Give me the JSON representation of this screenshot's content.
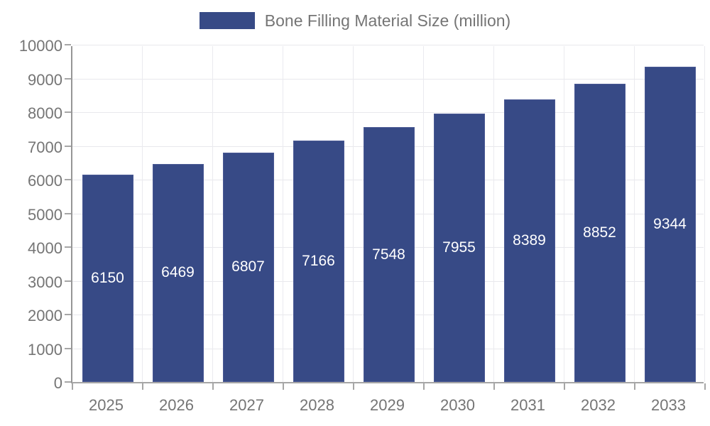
{
  "legend": {
    "label": "Bone Filling Material Size (million)",
    "swatch_color": "#374A86"
  },
  "chart_data": {
    "type": "bar",
    "title": "Bone Filling Material Size (million)",
    "categories": [
      "2025",
      "2026",
      "2027",
      "2028",
      "2029",
      "2030",
      "2031",
      "2032",
      "2033"
    ],
    "values": [
      6150,
      6469,
      6807,
      7166,
      7548,
      7955,
      8389,
      8852,
      9344
    ],
    "series_name": "Bone Filling Material Size (million)",
    "xlabel": "",
    "ylabel": "",
    "ylim": [
      0,
      10000
    ],
    "ytick_interval": 1000,
    "yticks": [
      0,
      1000,
      2000,
      3000,
      4000,
      5000,
      6000,
      7000,
      8000,
      9000,
      10000
    ],
    "grid": true,
    "legend_position": "top-center",
    "colors": {
      "bar": "#374A86",
      "bar_border": "#4A5994",
      "grid": "#E8E8EC",
      "axis": "#A6A6A6",
      "tick_text": "#757575",
      "value_label": "#FFFFFF"
    }
  }
}
